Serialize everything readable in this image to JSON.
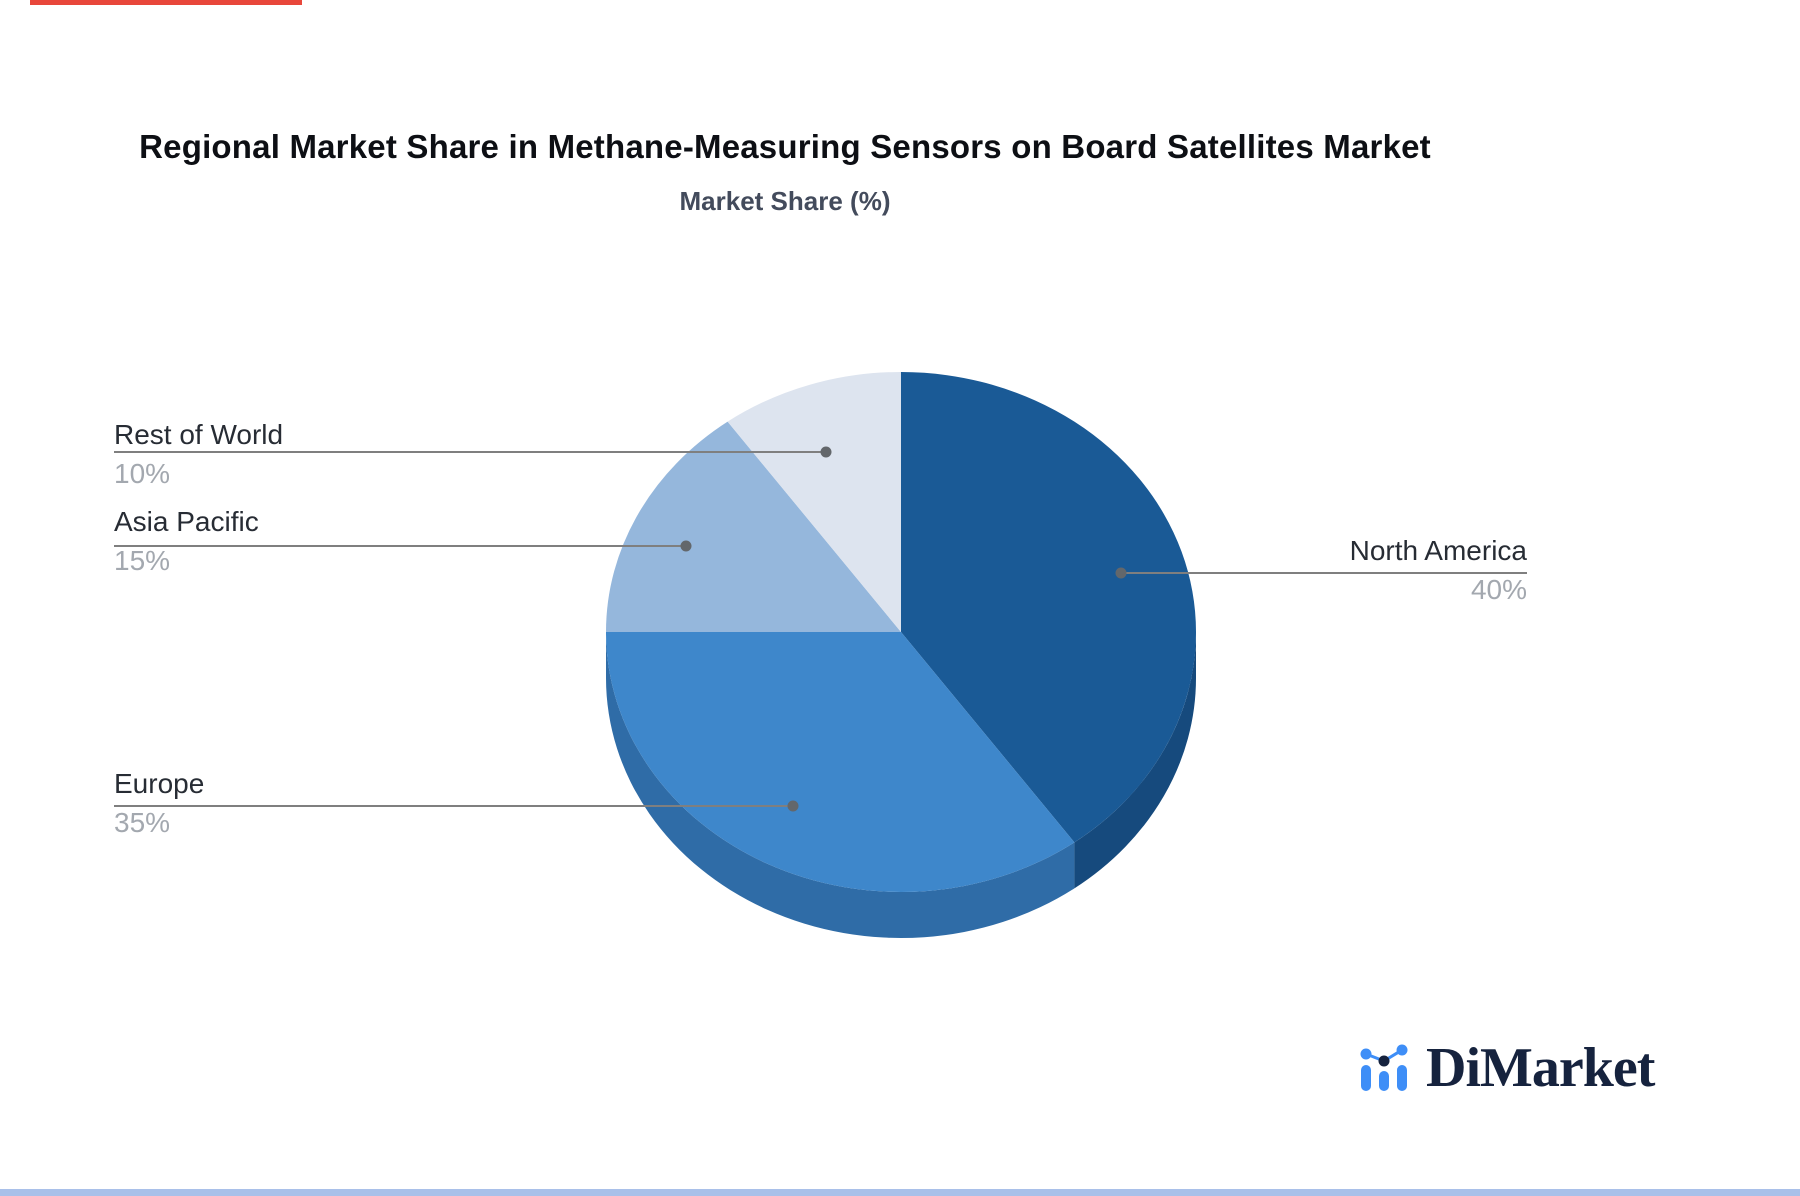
{
  "header": {
    "title": "Regional Market Share in Methane-Measuring Sensors on Board Satellites Market",
    "subtitle": "Market Share (%)"
  },
  "chart_data": {
    "type": "pie",
    "style": "3d-extruded",
    "title": "Regional Market Share in Methane-Measuring Sensors on Board Satellites Market",
    "subtitle": "Market Share (%)",
    "unit": "%",
    "start_angle_deg": 0,
    "direction": "clockwise",
    "total": 100,
    "legend_position": "callout-leader-lines",
    "categories": [
      "North America",
      "Europe",
      "Asia Pacific",
      "Rest of World"
    ],
    "values": [
      40,
      35,
      15,
      10
    ],
    "slices": [
      {
        "label": "North America",
        "value": 40,
        "display": "40%",
        "color": "#1a5a96",
        "side_color": "#164a7d",
        "callout_side": "right"
      },
      {
        "label": "Europe",
        "value": 35,
        "display": "35%",
        "color": "#3e87cb",
        "side_color": "#2f6ca7",
        "callout_side": "left"
      },
      {
        "label": "Asia Pacific",
        "value": 15,
        "display": "15%",
        "color": "#95b7dc",
        "side_color": "#7fa3c9",
        "callout_side": "left"
      },
      {
        "label": "Rest of World",
        "value": 10,
        "display": "10%",
        "color": "#dde4ef",
        "side_color": "#c3cedd",
        "callout_side": "left"
      }
    ]
  },
  "callout_style": {
    "line_color": "#7f7f7f",
    "dot_color": "#63676b"
  },
  "decorations": {
    "top_strip_color": "#e8473b",
    "bottom_strip_color": "#a9c0e9"
  },
  "branding": {
    "logo_text": "DiMarket",
    "logo_text_color": "#16233e",
    "logo_icon": "bar-line-chart-icon",
    "logo_icon_color": "#3e8ef7"
  }
}
